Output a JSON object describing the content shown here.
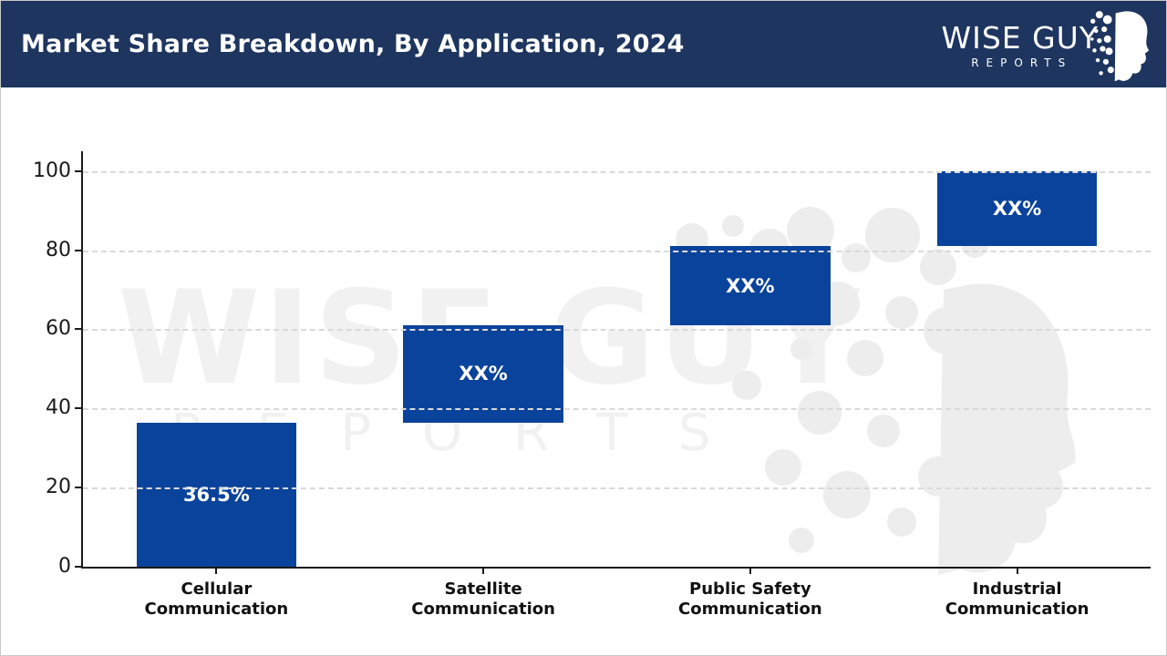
{
  "page": {
    "background": "#ffffff",
    "border_color": "#c9c9c9"
  },
  "header": {
    "bg_color": "#1E355F",
    "title": "Market Share Breakdown, By Application, 2024",
    "title_color": "#ffffff",
    "logo_line1": "WISE GUY",
    "logo_line2": "REPORTS"
  },
  "watermark": {
    "line1": "WISE GUY",
    "line2": "REPORTS",
    "color": "#f1f1f1",
    "head_color": "#ededed"
  },
  "chart_data": {
    "type": "bar",
    "variant": "floating-waterfall",
    "title": "Market Share Breakdown, By Application, 2024",
    "categories": [
      [
        "Cellular",
        "Communication"
      ],
      [
        "Satellite",
        "Communication"
      ],
      [
        "Public Safety",
        "Communication"
      ],
      [
        "Industrial",
        "Communication"
      ]
    ],
    "bars": [
      {
        "category": "Cellular Communication",
        "start": 0,
        "end": 36.5,
        "label": "36.5%"
      },
      {
        "category": "Satellite Communication",
        "start": 36.5,
        "end": 61,
        "label": "XX%"
      },
      {
        "category": "Public Safety Communication",
        "start": 61,
        "end": 81,
        "label": "XX%"
      },
      {
        "category": "Industrial Communication",
        "start": 81,
        "end": 100,
        "label": "XX%"
      }
    ],
    "bar_color": "#0A439B",
    "bar_label_color": "#ffffff",
    "bar_width_ratio": 0.6,
    "yticks": [
      0,
      20,
      40,
      60,
      80,
      100
    ],
    "ylim": [
      0,
      105
    ],
    "xlabel": "",
    "ylabel": "",
    "grid": {
      "show": true,
      "style": "dashed",
      "color": "#d9d9d9",
      "orientation": "horizontal"
    },
    "axis_color": "#1a1a1a",
    "legend": "none"
  }
}
